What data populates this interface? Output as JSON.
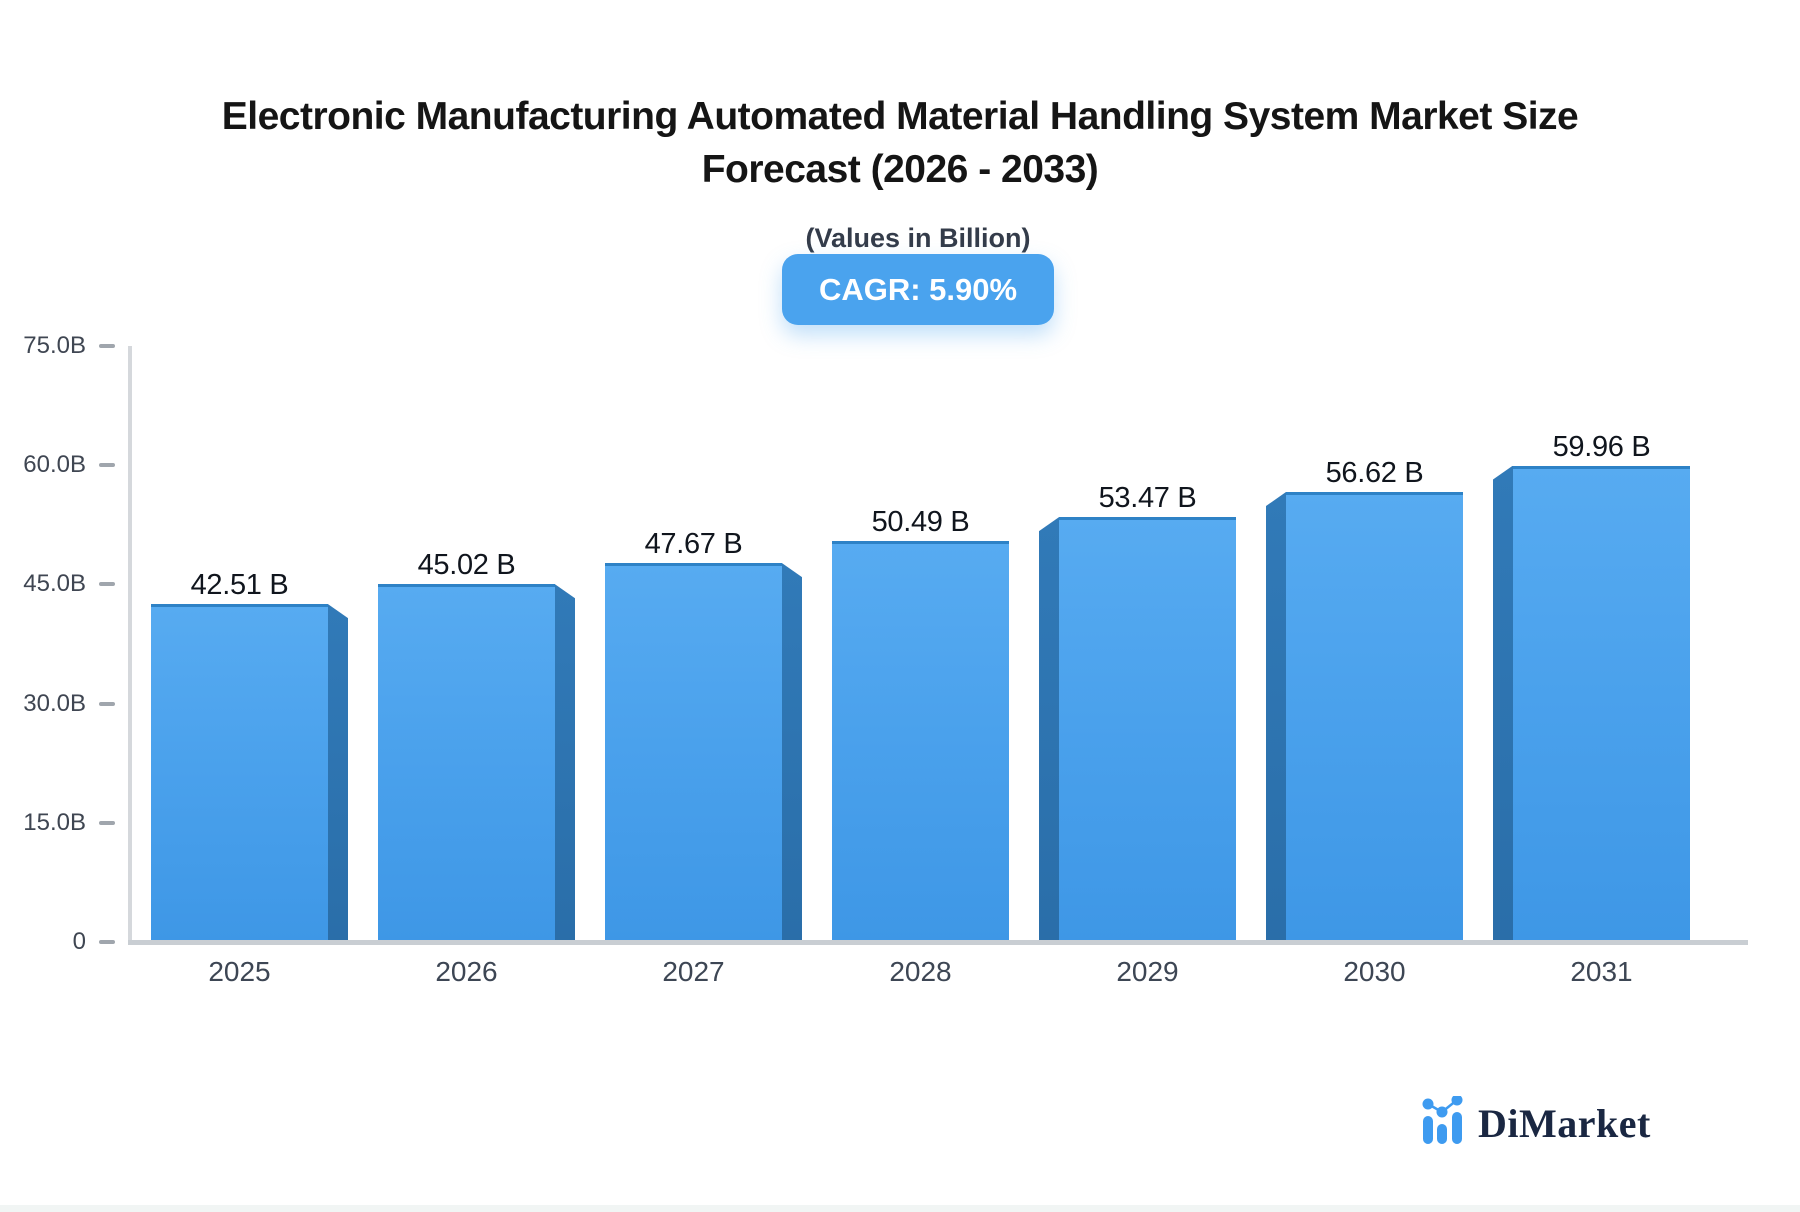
{
  "chart_data": {
    "type": "bar",
    "title": "Electronic Manufacturing Automated Material Handling System Market Size Forecast (2026 - 2033)",
    "title_line1": "Electronic Manufacturing Automated Material Handling System Market Size",
    "title_line2": "Forecast (2026 - 2033)",
    "subtitle": "(Values in Billion)",
    "annotation": "CAGR: 5.90%",
    "categories": [
      "2025",
      "2026",
      "2027",
      "2028",
      "2029",
      "2030",
      "2031"
    ],
    "values": [
      42.51,
      45.02,
      47.67,
      50.49,
      53.47,
      56.62,
      59.96
    ],
    "value_labels": [
      "42.51 B",
      "45.02 B",
      "47.67 B",
      "50.49 B",
      "53.47 B",
      "56.62 B",
      "59.96 B"
    ],
    "y_ticks": [
      {
        "v": 0,
        "label": "0"
      },
      {
        "v": 15,
        "label": "15.0B"
      },
      {
        "v": 30,
        "label": "30.0B"
      },
      {
        "v": 45,
        "label": "45.0B"
      },
      {
        "v": 60,
        "label": "60.0B"
      },
      {
        "v": 75,
        "label": "75.0B"
      }
    ],
    "ylim": [
      0,
      75
    ],
    "xlabel": "",
    "ylabel": "",
    "grid": false,
    "legend_position": "none",
    "bar_color": "#4AA3EE",
    "bar_side_color": "#2D73B2",
    "badge_color": "#4AA3EE"
  },
  "branding": {
    "name": "DiMarket",
    "logo_color": "#3E9BF0"
  }
}
